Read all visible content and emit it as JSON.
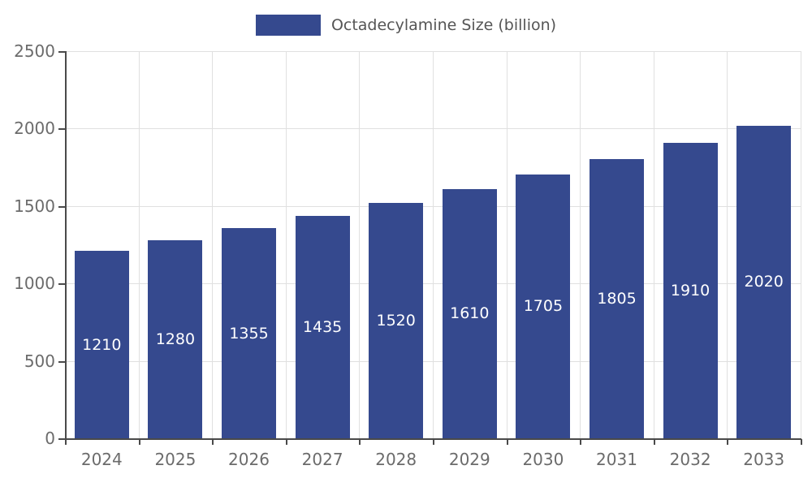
{
  "legend": {
    "label": "Octadecylamine Size (billion)",
    "swatch_color": "#35498E"
  },
  "chart_data": {
    "type": "bar",
    "title": "Octadecylamine Size (billion)",
    "categories": [
      "2024",
      "2025",
      "2026",
      "2027",
      "2028",
      "2029",
      "2030",
      "2031",
      "2032",
      "2033"
    ],
    "values": [
      1210,
      1280,
      1355,
      1435,
      1520,
      1610,
      1705,
      1805,
      1910,
      2020
    ],
    "series_name": "Octadecylamine Size (billion)",
    "xlabel": "",
    "ylabel": "",
    "ylim": [
      0,
      2500
    ],
    "yticks": [
      0,
      500,
      1000,
      1500,
      2000,
      2500
    ],
    "grid": true,
    "legend_position": "top-center",
    "bar_color": "#35498E",
    "value_label_color": "#FFFFFF",
    "value_label_position": "inside-middle",
    "axis_label_color": "#6b6b6b",
    "gridline_color": "#e0e0e0",
    "axis_line_color": "#4a4a4a"
  }
}
